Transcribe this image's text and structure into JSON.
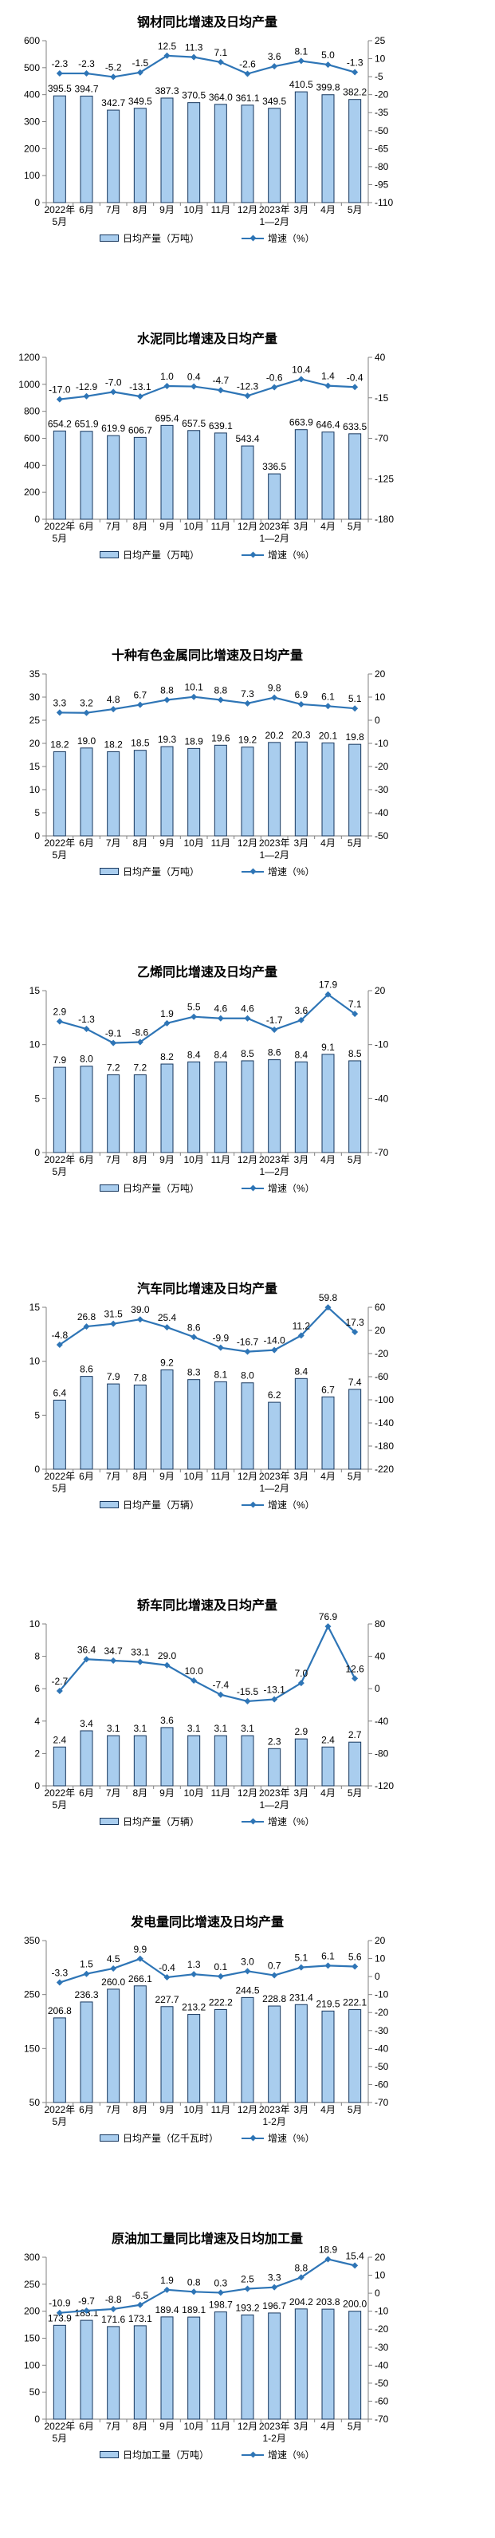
{
  "style": {
    "background": "#FFFFFF",
    "bar_fill": "#A9CDEE",
    "bar_border": "#17375E",
    "line_color": "#2E75B6",
    "axis_color": "#808080",
    "text_color": "#000000"
  },
  "chart_data": [
    {
      "type": "bar+line",
      "title": "钢材同比增速及日均产量",
      "categories": [
        [
          "2022年",
          "5月"
        ],
        "6月",
        "7月",
        "8月",
        "9月",
        "10月",
        "11月",
        "12月",
        [
          "2023年",
          "1—2月"
        ],
        "3月",
        "4月",
        "5月"
      ],
      "bar_series": {
        "name": "日均产量（万吨）",
        "values": [
          395.5,
          394.7,
          342.7,
          349.5,
          387.3,
          370.5,
          364.0,
          361.1,
          349.5,
          410.5,
          399.8,
          382.2
        ]
      },
      "line_series": {
        "name": "增速（%）",
        "values": [
          -2.3,
          -2.3,
          -5.2,
          -1.5,
          12.5,
          11.3,
          7.1,
          -2.6,
          3.6,
          8.1,
          5.0,
          -1.3
        ]
      },
      "left_axis": {
        "min": 0,
        "max": 600,
        "step": 100
      },
      "right_axis": {
        "min": -110,
        "max": 25,
        "step": 15
      },
      "legend": {
        "bar_label": "日均产量（万吨）",
        "line_label": "增速（%）"
      }
    },
    {
      "type": "bar+line",
      "title": "水泥同比增速及日均产量",
      "categories": [
        [
          "2022年",
          "5月"
        ],
        "6月",
        "7月",
        "8月",
        "9月",
        "10月",
        "11月",
        "12月",
        [
          "2023年",
          "1—2月"
        ],
        "3月",
        "4月",
        "5月"
      ],
      "bar_series": {
        "name": "日均产量（万吨）",
        "values": [
          654.2,
          651.9,
          619.9,
          606.7,
          695.4,
          657.5,
          639.1,
          543.4,
          336.5,
          663.9,
          646.4,
          633.5
        ]
      },
      "line_series": {
        "name": "增速（%）",
        "values": [
          -17.0,
          -12.9,
          -7.0,
          -13.1,
          1.0,
          0.4,
          -4.7,
          -12.3,
          -0.6,
          10.4,
          1.4,
          -0.4
        ]
      },
      "left_axis": {
        "min": 0,
        "max": 1200,
        "step": 200
      },
      "right_axis": {
        "min": -180,
        "max": 40,
        "step": 55
      },
      "legend": {
        "bar_label": "日均产量（万吨）",
        "line_label": "增速（%）"
      }
    },
    {
      "type": "bar+line",
      "title": "十种有色金属同比增速及日均产量",
      "categories": [
        [
          "2022年",
          "5月"
        ],
        "6月",
        "7月",
        "8月",
        "9月",
        "10月",
        "11月",
        "12月",
        [
          "2023年",
          "1—2月"
        ],
        "3月",
        "4月",
        "5月"
      ],
      "bar_series": {
        "name": "日均产量（万吨）",
        "values": [
          18.2,
          19.0,
          18.2,
          18.5,
          19.3,
          18.9,
          19.6,
          19.2,
          20.2,
          20.3,
          20.1,
          19.8
        ]
      },
      "line_series": {
        "name": "增速（%）",
        "values": [
          3.3,
          3.2,
          4.8,
          6.7,
          8.8,
          10.1,
          8.8,
          7.3,
          9.8,
          6.9,
          6.1,
          5.1
        ]
      },
      "left_axis": {
        "min": 0,
        "max": 35,
        "step": 5
      },
      "right_axis": {
        "min": -50,
        "max": 20,
        "step": 10
      },
      "legend": {
        "bar_label": "日均产量（万吨）",
        "line_label": "增速（%）"
      }
    },
    {
      "type": "bar+line",
      "title": "乙烯同比增速及日均产量",
      "categories": [
        [
          "2022年",
          "5月"
        ],
        "6月",
        "7月",
        "8月",
        "9月",
        "10月",
        "11月",
        "12月",
        [
          "2023年",
          "1—2月"
        ],
        "3月",
        "4月",
        "5月"
      ],
      "bar_series": {
        "name": "日均产量（万吨）",
        "values": [
          7.9,
          8.0,
          7.2,
          7.2,
          8.2,
          8.4,
          8.4,
          8.5,
          8.6,
          8.4,
          9.1,
          8.5
        ]
      },
      "line_series": {
        "name": "增速（%）",
        "values": [
          2.9,
          -1.3,
          -9.1,
          -8.6,
          1.9,
          5.5,
          4.6,
          4.6,
          -1.7,
          3.6,
          17.9,
          7.1
        ]
      },
      "left_axis": {
        "min": 0,
        "max": 15,
        "step": 5
      },
      "right_axis": {
        "min": -70,
        "max": 20,
        "step": 30
      },
      "legend": {
        "bar_label": "日均产量（万吨）",
        "line_label": "增速（%）"
      }
    },
    {
      "type": "bar+line",
      "title": "汽车同比增速及日均产量",
      "categories": [
        [
          "2022年",
          "5月"
        ],
        "6月",
        "7月",
        "8月",
        "9月",
        "10月",
        "11月",
        "12月",
        [
          "2023年",
          "1—2月"
        ],
        "3月",
        "4月",
        "5月"
      ],
      "bar_series": {
        "name": "日均产量（万辆）",
        "values": [
          6.4,
          8.6,
          7.9,
          7.8,
          9.2,
          8.3,
          8.1,
          8.0,
          6.2,
          8.4,
          6.7,
          7.4
        ]
      },
      "line_series": {
        "name": "增速（%）",
        "values": [
          -4.8,
          26.8,
          31.5,
          39.0,
          25.4,
          8.6,
          -9.9,
          -16.7,
          -14.0,
          11.2,
          59.8,
          17.3
        ]
      },
      "left_axis": {
        "min": 0,
        "max": 15,
        "step": 5
      },
      "right_axis": {
        "min": -220,
        "max": 60,
        "step": 40
      },
      "legend": {
        "bar_label": "日均产量（万辆）",
        "line_label": "增速（%）"
      }
    },
    {
      "type": "bar+line",
      "title": "轿车同比增速及日均产量",
      "categories": [
        [
          "2022年",
          "5月"
        ],
        "6月",
        "7月",
        "8月",
        "9月",
        "10月",
        "11月",
        "12月",
        [
          "2023年",
          "1—2月"
        ],
        "3月",
        "4月",
        "5月"
      ],
      "bar_series": {
        "name": "日均产量（万辆）",
        "values": [
          2.4,
          3.4,
          3.1,
          3.1,
          3.6,
          3.1,
          3.1,
          3.1,
          2.3,
          2.9,
          2.4,
          2.7
        ]
      },
      "line_series": {
        "name": "增速（%）",
        "values": [
          -2.7,
          36.4,
          34.7,
          33.1,
          29.0,
          10.0,
          -7.4,
          -15.5,
          -13.1,
          7.0,
          76.9,
          12.6
        ]
      },
      "left_axis": {
        "min": 0,
        "max": 10,
        "step": 2
      },
      "right_axis": {
        "min": -120,
        "max": 80,
        "step": 40
      },
      "legend": {
        "bar_label": "日均产量（万辆）",
        "line_label": "增速（%）"
      }
    },
    {
      "type": "bar+line",
      "title": "发电量同比增速及日均产量",
      "categories": [
        [
          "2022年",
          "5月"
        ],
        "6月",
        "7月",
        "8月",
        "9月",
        "10月",
        "11月",
        "12月",
        [
          "2023年",
          "1-2月"
        ],
        "3月",
        "4月",
        "5月"
      ],
      "bar_series": {
        "name": "日均产量（亿千瓦时）",
        "values": [
          206.8,
          236.3,
          260.0,
          266.1,
          227.7,
          213.2,
          222.2,
          244.5,
          228.8,
          231.4,
          219.5,
          222.1
        ]
      },
      "line_series": {
        "name": "增速（%）",
        "values": [
          -3.3,
          1.5,
          4.5,
          9.9,
          -0.4,
          1.3,
          0.1,
          3.0,
          0.7,
          5.1,
          6.1,
          5.6
        ]
      },
      "left_axis": {
        "min": 50,
        "max": 350,
        "step": 100
      },
      "right_axis": {
        "min": -70,
        "max": 20,
        "step": 10
      },
      "legend": {
        "bar_label": "日均产量（亿千瓦时）",
        "line_label": "增速（%）"
      }
    },
    {
      "type": "bar+line",
      "title": "原油加工量同比增速及日均加工量",
      "categories": [
        [
          "2022年",
          "5月"
        ],
        "6月",
        "7月",
        "8月",
        "9月",
        "10月",
        "11月",
        "12月",
        [
          "2023年",
          "1-2月"
        ],
        "3月",
        "4月",
        "5月"
      ],
      "bar_series": {
        "name": "日均加工量（万吨）",
        "values": [
          173.9,
          183.1,
          171.6,
          173.1,
          189.4,
          189.1,
          198.7,
          193.2,
          196.7,
          204.2,
          203.8,
          200.0
        ]
      },
      "line_series": {
        "name": "增速（%）",
        "values": [
          -10.9,
          -9.7,
          -8.8,
          -6.5,
          1.9,
          0.8,
          0.3,
          2.5,
          3.3,
          8.8,
          18.9,
          15.4
        ]
      },
      "left_axis": {
        "min": 0,
        "max": 300,
        "step": 50
      },
      "right_axis": {
        "min": -70,
        "max": 20,
        "step": 10
      },
      "legend": {
        "bar_label": "日均加工量（万吨）",
        "line_label": "增速（%）"
      }
    }
  ]
}
